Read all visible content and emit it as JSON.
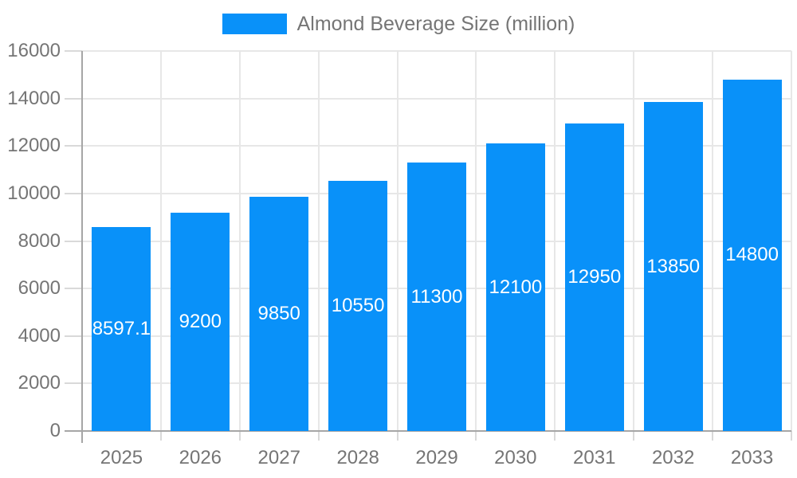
{
  "legend": {
    "label": "Almond Beverage Size (million)"
  },
  "colors": {
    "accent": "#0991f9",
    "gridline": "#e7e7e7",
    "tick": "#d9d9d9",
    "axis_line": "#a6a6a6",
    "axis_text": "#757575",
    "value_label_text": "#ffffff",
    "background": "#ffffff"
  },
  "chart_data": {
    "type": "bar",
    "title": "",
    "categories": [
      "2025",
      "2026",
      "2027",
      "2028",
      "2029",
      "2030",
      "2031",
      "2032",
      "2033"
    ],
    "series": [
      {
        "name": "Almond Beverage Size (million)",
        "values": [
          8597.1,
          9200,
          9850,
          10550,
          11300,
          12100,
          12950,
          13850,
          14800
        ]
      }
    ],
    "value_labels": [
      "8597.1",
      "9200",
      "9850",
      "10550",
      "11300",
      "12100",
      "12950",
      "13850",
      "14800"
    ],
    "xlabel": "",
    "ylabel": "",
    "ylim": [
      0,
      16000
    ],
    "ytick_step": 2000,
    "ytick_labels": [
      "0",
      "2000",
      "4000",
      "6000",
      "8000",
      "10000",
      "12000",
      "14000",
      "16000"
    ],
    "grid": true,
    "legend_position": "top"
  }
}
